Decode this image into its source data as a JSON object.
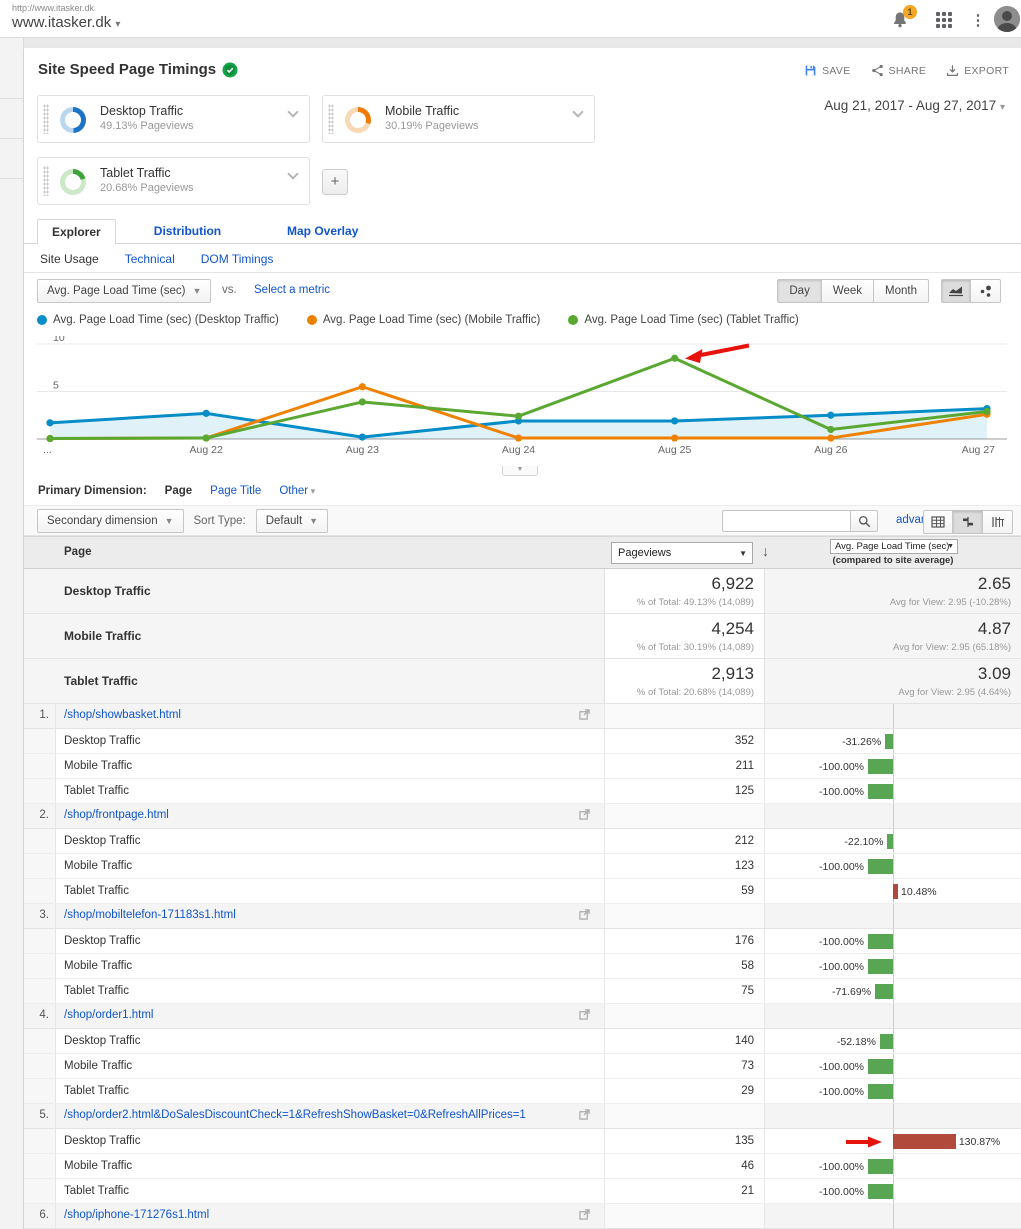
{
  "app": {
    "url_bar": "http://www.itasker.dk",
    "account": "www.itasker.dk",
    "notification_count": "1"
  },
  "report": {
    "title": "Site Speed Page Timings",
    "save_label": "SAVE",
    "share_label": "SHARE",
    "export_label": "EXPORT",
    "date_range": "Aug 21, 2017 - Aug 27, 2017"
  },
  "segments": [
    {
      "name": "Desktop Traffic",
      "sub": "49.13% Pageviews",
      "pct": 49.13,
      "color": "#1d74c6",
      "rest_color": "#b9d6ef"
    },
    {
      "name": "Mobile Traffic",
      "sub": "30.19% Pageviews",
      "pct": 30.19,
      "color": "#ee7b08",
      "rest_color": "#f8d8b5"
    },
    {
      "name": "Tablet Traffic",
      "sub": "20.68% Pageviews",
      "pct": 20.68,
      "color": "#3fa33a",
      "rest_color": "#cde8c9"
    }
  ],
  "add_segment_label": "+",
  "tabs": [
    {
      "label": "Explorer",
      "active": true
    },
    {
      "label": "Distribution",
      "active": false
    },
    {
      "label": "Map Overlay",
      "active": false
    }
  ],
  "subtabs": [
    {
      "label": "Site Usage",
      "active": true
    },
    {
      "label": "Technical",
      "active": false
    },
    {
      "label": "DOM Timings",
      "active": false
    }
  ],
  "metric_bar": {
    "metric_dropdown": "Avg. Page Load Time (sec)",
    "vs_label": "vs.",
    "select_metric": "Select a metric",
    "granularity": [
      {
        "label": "Day",
        "active": true
      },
      {
        "label": "Week",
        "active": false
      },
      {
        "label": "Month",
        "active": false
      }
    ]
  },
  "chart_data": {
    "type": "line",
    "title": "",
    "x": [
      "Aug 21",
      "Aug 22",
      "Aug 23",
      "Aug 24",
      "Aug 25",
      "Aug 26",
      "Aug 27"
    ],
    "x_tick_labels": [
      "...",
      "Aug 22",
      "Aug 23",
      "Aug 24",
      "Aug 25",
      "Aug 26",
      "Aug 27"
    ],
    "ylim": [
      0,
      10
    ],
    "yticks": [
      5,
      10
    ],
    "grid": true,
    "legend_position": "top",
    "series": [
      {
        "name": "Avg. Page Load Time (sec) (Desktop Traffic)",
        "color": "#058dc7",
        "area": true,
        "values": [
          1.7,
          2.7,
          0.2,
          1.9,
          1.9,
          2.5,
          3.2
        ]
      },
      {
        "name": "Avg. Page Load Time (sec) (Mobile Traffic)",
        "color": "#ee8100",
        "area": false,
        "values": [
          0.05,
          0.1,
          5.5,
          0.1,
          0.1,
          0.1,
          2.6
        ]
      },
      {
        "name": "Avg. Page Load Time (sec) (Tablet Traffic)",
        "color": "#5aa832",
        "area": false,
        "values": [
          0.05,
          0.1,
          3.9,
          2.4,
          8.5,
          1.0,
          2.9
        ]
      }
    ],
    "annotations": [
      {
        "type": "red-arrow",
        "target": "Tablet Traffic peak Aug 25"
      }
    ]
  },
  "dimension_bar": {
    "label": "Primary Dimension:",
    "options": [
      {
        "label": "Page",
        "active": true,
        "caret": false
      },
      {
        "label": "Page Title",
        "active": false,
        "caret": false
      },
      {
        "label": "Other",
        "active": false,
        "caret": true
      }
    ]
  },
  "controls": {
    "secondary_dimension": "Secondary dimension",
    "sort_type_label": "Sort Type:",
    "sort_value": "Default",
    "search_value": "",
    "advanced_label": "advanced"
  },
  "table": {
    "col_page": "Page",
    "col_pageviews": "Pageviews",
    "col_metric": "Avg. Page Load Time (sec)",
    "col_metric_sub": "(compared to site average)",
    "bar_negative_color": "#58a653",
    "bar_positive_color": "#b14a3b",
    "summary": [
      {
        "name": "Desktop Traffic",
        "pageviews": "6,922",
        "pv_sub": "% of Total: 49.13% (14,089)",
        "metric": "2.65",
        "metric_sub": "Avg for View: 2.95 (-10.28%)"
      },
      {
        "name": "Mobile Traffic",
        "pageviews": "4,254",
        "pv_sub": "% of Total: 30.19% (14,089)",
        "metric": "4.87",
        "metric_sub": "Avg for View: 2.95 (65.18%)"
      },
      {
        "name": "Tablet Traffic",
        "pageviews": "2,913",
        "pv_sub": "% of Total: 20.68% (14,089)",
        "metric": "3.09",
        "metric_sub": "Avg for View: 2.95 (4.64%)"
      }
    ],
    "rows": [
      {
        "num": "1.",
        "url": "/shop/showbasket.html",
        "subs": [
          {
            "name": "Desktop Traffic",
            "pv": "352",
            "pct": -31.26
          },
          {
            "name": "Mobile Traffic",
            "pv": "211",
            "pct": -100.0
          },
          {
            "name": "Tablet Traffic",
            "pv": "125",
            "pct": -100.0
          }
        ]
      },
      {
        "num": "2.",
        "url": "/shop/frontpage.html",
        "subs": [
          {
            "name": "Desktop Traffic",
            "pv": "212",
            "pct": -22.1
          },
          {
            "name": "Mobile Traffic",
            "pv": "123",
            "pct": -100.0
          },
          {
            "name": "Tablet Traffic",
            "pv": "59",
            "pct": 10.48
          }
        ]
      },
      {
        "num": "3.",
        "url": "/shop/mobiltelefon-171183s1.html",
        "subs": [
          {
            "name": "Desktop Traffic",
            "pv": "176",
            "pct": -100.0
          },
          {
            "name": "Mobile Traffic",
            "pv": "58",
            "pct": -100.0
          },
          {
            "name": "Tablet Traffic",
            "pv": "75",
            "pct": -71.69
          }
        ]
      },
      {
        "num": "4.",
        "url": "/shop/order1.html",
        "subs": [
          {
            "name": "Desktop Traffic",
            "pv": "140",
            "pct": -52.18
          },
          {
            "name": "Mobile Traffic",
            "pv": "73",
            "pct": -100.0
          },
          {
            "name": "Tablet Traffic",
            "pv": "29",
            "pct": -100.0
          }
        ]
      },
      {
        "num": "5.",
        "url": "/shop/order2.html&DoSalesDiscountCheck=1&RefreshShowBasket=0&RefreshAllPrices=1",
        "subs": [
          {
            "name": "Desktop Traffic",
            "pv": "135",
            "pct": 130.87,
            "arrow": true
          },
          {
            "name": "Mobile Traffic",
            "pv": "46",
            "pct": -100.0
          },
          {
            "name": "Tablet Traffic",
            "pv": "21",
            "pct": -100.0
          }
        ]
      },
      {
        "num": "6.",
        "url": "/shop/iphone-171276s1.html",
        "subs": []
      }
    ]
  }
}
